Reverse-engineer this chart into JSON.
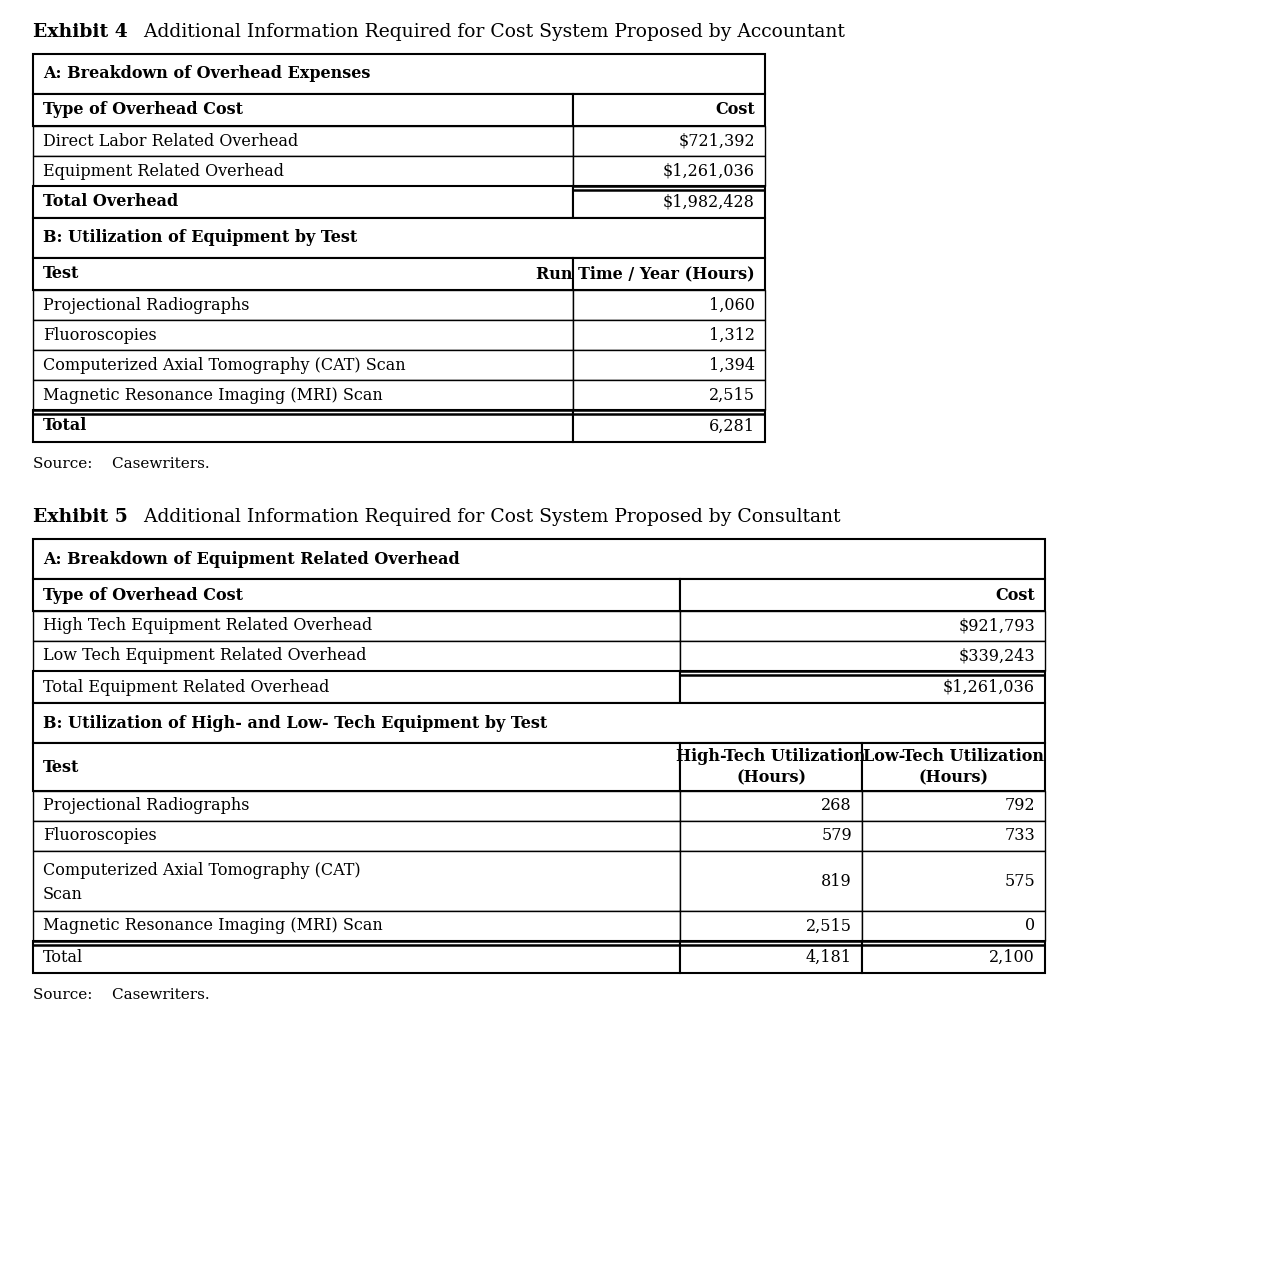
{
  "exhibit4_title_bold": "Exhibit 4",
  "exhibit4_title_rest": "    Additional Information Required for Cost System Proposed by Accountant",
  "exhibit5_title_bold": "Exhibit 5",
  "exhibit5_title_rest": "    Additional Information Required for Cost System Proposed by Consultant",
  "source_text": "Source:    Casewriters.",
  "ex4_sectionA_header": "A: Breakdown of Overhead Expenses",
  "ex4_sectionA_col1_header": "Type of Overhead Cost",
  "ex4_sectionA_col2_header": "Cost",
  "ex4_sectionA_rows": [
    [
      "Direct Labor Related Overhead",
      "$721,392"
    ],
    [
      "Equipment Related Overhead",
      "$1,261,036"
    ]
  ],
  "ex4_sectionA_total": [
    "Total Overhead",
    "$1,982,428"
  ],
  "ex4_sectionB_header": "B: Utilization of Equipment by Test",
  "ex4_sectionB_col1_header": "Test",
  "ex4_sectionB_col2_header": "Run Time / Year (Hours)",
  "ex4_sectionB_rows": [
    [
      "Projectional Radiographs",
      "1,060"
    ],
    [
      "Fluoroscopies",
      "1,312"
    ],
    [
      "Computerized Axial Tomography (CAT) Scan",
      "1,394"
    ],
    [
      "Magnetic Resonance Imaging (MRI) Scan",
      "2,515"
    ]
  ],
  "ex4_sectionB_total": [
    "Total",
    "6,281"
  ],
  "ex5_sectionA_header": "A: Breakdown of Equipment Related Overhead",
  "ex5_sectionA_col1_header": "Type of Overhead Cost",
  "ex5_sectionA_col2_header": "Cost",
  "ex5_sectionA_rows": [
    [
      "High Tech Equipment Related Overhead",
      "$921,793"
    ],
    [
      "Low Tech Equipment Related Overhead",
      "$339,243"
    ]
  ],
  "ex5_sectionA_total": [
    "Total Equipment Related Overhead",
    "$1,261,036"
  ],
  "ex5_sectionB_header": "B: Utilization of High- and Low- Tech Equipment by Test",
  "ex5_sectionB_col1_header": "Test",
  "ex5_sectionB_col2_header": "High-Tech Utilization\n(Hours)",
  "ex5_sectionB_col3_header": "Low-Tech Utilization\n(Hours)",
  "ex5_sectionB_rows": [
    [
      "Projectional Radiographs",
      "268",
      "792"
    ],
    [
      "Fluoroscopies",
      "579",
      "733"
    ],
    [
      "Computerized Axial Tomography (CAT)\nScan",
      "819",
      "575"
    ],
    [
      "Magnetic Resonance Imaging (MRI) Scan",
      "2,515",
      "0"
    ]
  ],
  "ex5_sectionB_total": [
    "Total",
    "4,181",
    "2,100"
  ],
  "bg_color": "#ffffff",
  "text_color": "#000000",
  "border_color": "#000000"
}
